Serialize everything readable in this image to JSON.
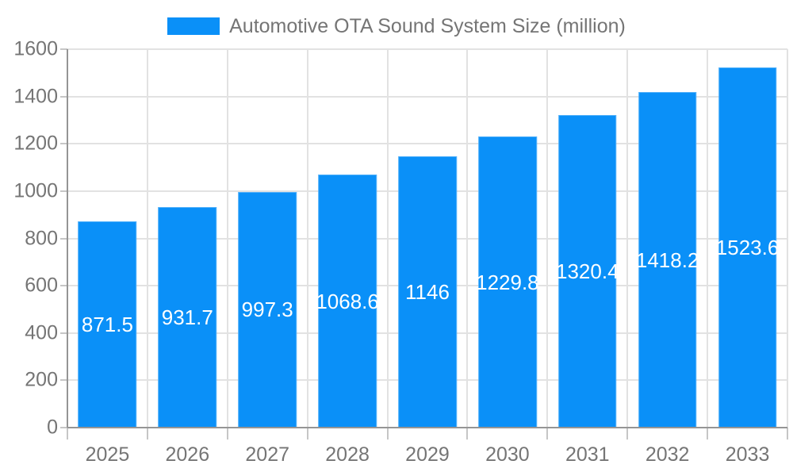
{
  "chart_data": {
    "type": "bar",
    "title": "Automotive OTA Sound System Size (million)",
    "categories": [
      "2025",
      "2026",
      "2027",
      "2028",
      "2029",
      "2030",
      "2031",
      "2032",
      "2033"
    ],
    "values": [
      871.5,
      931.7,
      997.3,
      1068.6,
      1146,
      1229.8,
      1320.4,
      1418.2,
      1523.6
    ],
    "xlabel": "",
    "ylabel": "",
    "ylim": [
      0,
      1600
    ],
    "yticks": [
      0,
      200,
      400,
      600,
      800,
      1000,
      1200,
      1400,
      1600
    ],
    "grid": true,
    "legend_position": "top",
    "bar_color": "#0a90f8",
    "value_label_color": "#ffffff",
    "axis_text_color": "#757575"
  }
}
